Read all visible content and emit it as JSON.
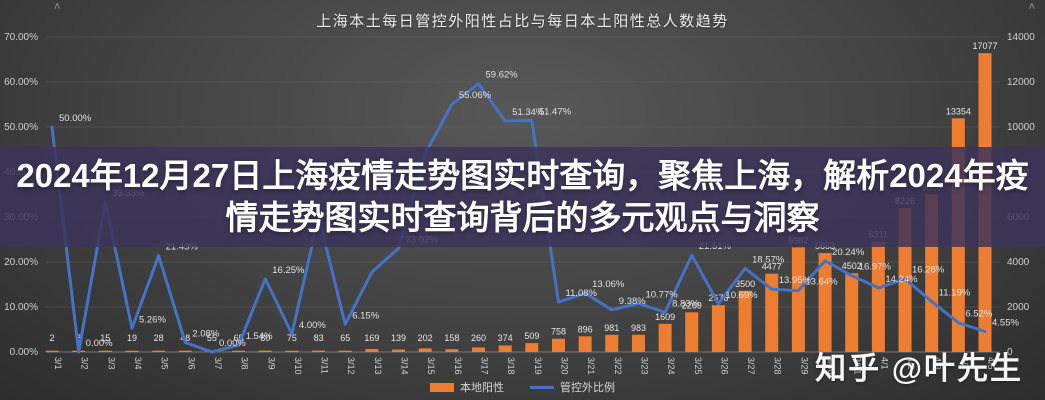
{
  "header": {
    "title": "上海本土每日管控外阳性占比与每日本土阳性总人数趋势"
  },
  "banner": {
    "line1": "2024年12月27日上海疫情走势图实时查询，聚焦上海，解析2024年疫",
    "line2": "情走势图实时查询背后的多元观点与洞察"
  },
  "watermark": {
    "text": "知乎 @叶先生"
  },
  "icons": {
    "chevron_glyph": "˄"
  },
  "legend": {
    "items": [
      {
        "label": "本地阳性",
        "type": "bar",
        "color": "#ED7D31"
      },
      {
        "label": "管控外比例",
        "type": "line",
        "color": "#4472C4"
      }
    ]
  },
  "colors": {
    "bar": "#ED7D31",
    "line": "#4472C4",
    "banner_bg": "rgba(59,51,90,0.84)",
    "grid": "#5e5e5e",
    "baseline": "#8a8a8a",
    "axis_text": "#cfcfcf",
    "bar_label_text": "#e6e6e6",
    "line_label_text": "#e0e0e0"
  },
  "chart_data": {
    "type": "combo-bar-line",
    "title": "上海本土每日管控外阳性占比与每日本土阳性总人数趋势",
    "categories": [
      "3/1",
      "3/2",
      "3/3",
      "3/4",
      "3/5",
      "3/6",
      "3/7",
      "3/8",
      "3/9",
      "3/10",
      "3/11",
      "3/12",
      "3/13",
      "3/14",
      "3/15",
      "3/16",
      "3/17",
      "3/18",
      "3/19",
      "3/20",
      "3/21",
      "3/22",
      "3/23",
      "3/24",
      "3/25",
      "3/26",
      "3/27",
      "3/28",
      "3/29",
      "3/30",
      "3/31",
      "4/1",
      "4/2",
      "4/3",
      "4/4",
      "4/5"
    ],
    "series": [
      {
        "name": "本地阳性",
        "type": "bar",
        "axis": "right",
        "values": [
          2,
          8,
          15,
          19,
          28,
          48,
          55,
          65,
          80,
          75,
          83,
          65,
          169,
          139,
          202,
          158,
          260,
          374,
          509,
          758,
          896,
          981,
          983,
          1609,
          2269,
          2676,
          3500,
          4477,
          5982,
          5653,
          4502,
          6311,
          8226,
          9006,
          13354,
          17077
        ]
      },
      {
        "name": "管控外比例",
        "type": "line",
        "axis": "left",
        "unit": "%",
        "values": [
          50.0,
          0.0,
          33.33,
          5.26,
          21.43,
          2.08,
          0.0,
          1.54,
          16.25,
          4.0,
          30.12,
          6.15,
          17.75,
          23.02,
          44.06,
          55.06,
          59.62,
          51.34,
          51.47,
          11.08,
          13.06,
          9.38,
          10.77,
          8.83,
          21.51,
          10.69,
          18.57,
          13.95,
          13.64,
          20.24,
          16.97,
          14.24,
          16.28,
          11.19,
          6.52,
          4.55
        ],
        "point_labels": [
          "50.00%",
          "0.00%",
          "33.33%",
          "5.26%",
          "21.43%",
          "2.08%",
          "0.00%",
          "1.54%",
          "16.25%",
          "4.00%",
          null,
          "6.15%",
          null,
          "23.02%",
          null,
          "55.06%",
          "59.62%",
          "51.34%",
          "51.47%",
          "11.08%",
          "13.06%",
          "9.38%",
          "10.77%",
          "8.83%",
          "21.51%",
          "10.69%",
          "18.57%",
          "13.95%",
          "13.64%",
          "20.24%",
          "16.97%",
          "14.24%",
          "16.28%",
          "11.19%",
          "6.52%",
          "4.55%"
        ]
      }
    ],
    "left_axis": {
      "min": 0,
      "max": 70,
      "tick_step": 10,
      "tick_labels": [
        "0.00%",
        "10.00%",
        "20.00%",
        "30.00%",
        "40.00%",
        "50.00%",
        "60.00%",
        "70.00%"
      ]
    },
    "right_axis": {
      "min": 0,
      "max": 18000,
      "tick_step": 2000,
      "tick_labels": [
        "0",
        "2000",
        "4000",
        "6000",
        "8000",
        "10000",
        "12000",
        "14000",
        "16000",
        "18000"
      ]
    },
    "grid": true,
    "legend_position": "bottom"
  }
}
